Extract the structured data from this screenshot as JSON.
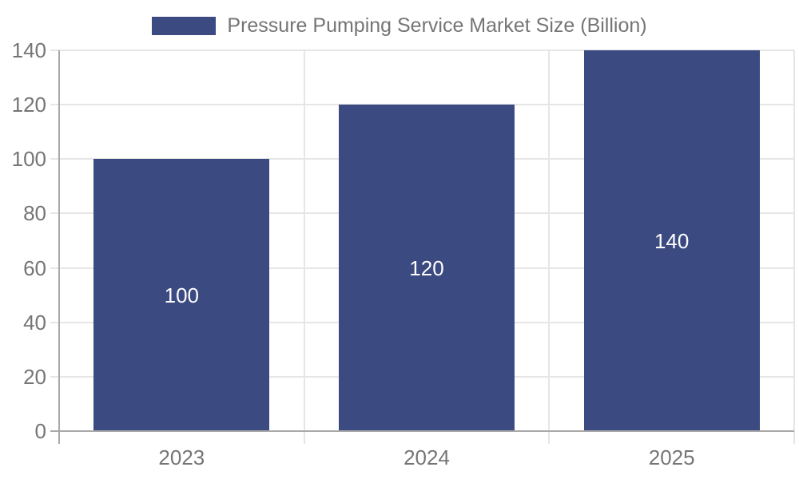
{
  "chart_data": {
    "type": "bar",
    "title": "Pressure Pumping Service Market Size (Billion)",
    "categories": [
      "2023",
      "2024",
      "2025"
    ],
    "values": [
      100,
      120,
      140
    ],
    "bar_value_labels": [
      "100",
      "120",
      "140"
    ],
    "xlabel": "",
    "ylabel": "",
    "ylim": [
      0,
      140
    ],
    "yticks": [
      0,
      20,
      40,
      60,
      80,
      100,
      120,
      140
    ],
    "ytick_labels": [
      "0",
      "20",
      "40",
      "60",
      "80",
      "100",
      "120",
      "140"
    ],
    "grid": "on",
    "legend_position": "top-center"
  },
  "colors": {
    "bar": "#3b4a80",
    "axis_text": "#757575",
    "value_label_text": "#ffffff",
    "grid_line": "#e6e6e6",
    "axis_line": "#a9a9a9",
    "background": "#ffffff"
  }
}
